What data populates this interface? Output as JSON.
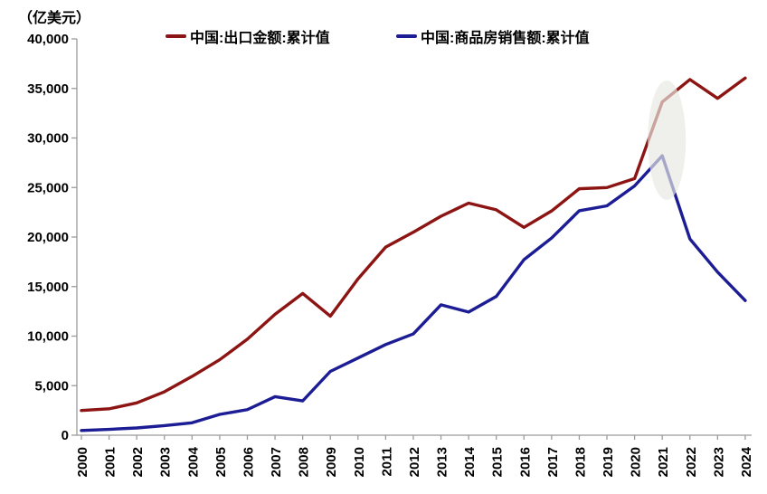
{
  "chart_data": {
    "type": "line",
    "unit_label": "（亿美元）",
    "categories": [
      "2000",
      "2001",
      "2002",
      "2003",
      "2004",
      "2005",
      "2006",
      "2007",
      "2008",
      "2009",
      "2010",
      "2011",
      "2012",
      "2013",
      "2014",
      "2015",
      "2016",
      "2017",
      "2018",
      "2019",
      "2020",
      "2021",
      "2022",
      "2023",
      "2024"
    ],
    "series": [
      {
        "name": "中国:出口金额:累计值",
        "color": "#8C1412",
        "values": [
          2492,
          2661,
          3256,
          4382,
          5933,
          7620,
          9690,
          12205,
          14307,
          12016,
          15778,
          18984,
          20489,
          22100,
          23427,
          22750,
          20976,
          22635,
          24874,
          24995,
          25900,
          33640,
          35900,
          34000,
          36050
        ]
      },
      {
        "name": "中国:商品房销售额:累计值",
        "color": "#1C1C94",
        "values": [
          475,
          590,
          730,
          960,
          1255,
          2100,
          2580,
          3890,
          3460,
          6440,
          7790,
          9150,
          10220,
          13160,
          12430,
          14010,
          17715,
          19900,
          22655,
          23150,
          25160,
          28205,
          19810,
          16470,
          13590
        ]
      }
    ],
    "ylim": [
      0,
      40000
    ],
    "y_tick_interval": 5000,
    "y_tick_labels": [
      "0",
      "5,000",
      "10,000",
      "15,000",
      "20,000",
      "25,000",
      "30,000",
      "35,000",
      "40,000"
    ],
    "legend_position": "top",
    "grid": false,
    "annotation": {
      "shape": "ellipse",
      "highlight_year": "2021",
      "fill": "#E8E8E2"
    }
  },
  "colors": {
    "background": "#FFFFFF",
    "axis": "#9A9A9A",
    "text": "#000000"
  }
}
